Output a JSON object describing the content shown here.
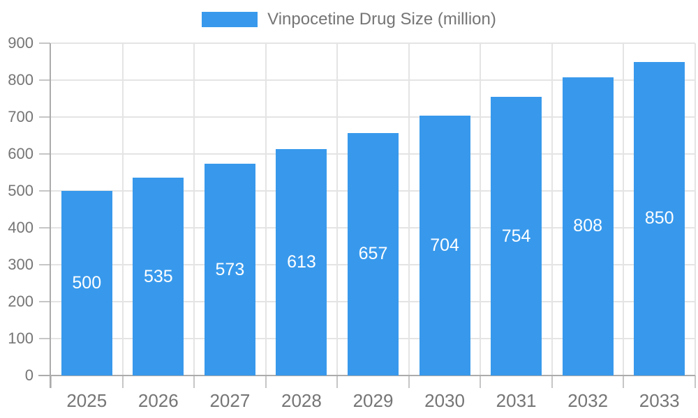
{
  "chart_data": {
    "type": "bar",
    "title": "",
    "legend": "Vinpocetine Drug Size (million)",
    "legend_position": "top",
    "categories": [
      "2025",
      "2026",
      "2027",
      "2028",
      "2029",
      "2030",
      "2031",
      "2032",
      "2033"
    ],
    "values": [
      500,
      535,
      573,
      613,
      657,
      704,
      754,
      808,
      850
    ],
    "xlabel": "",
    "ylabel": "",
    "ylim": [
      0,
      900
    ],
    "ytick_step": 100,
    "yticks": [
      0,
      100,
      200,
      300,
      400,
      500,
      600,
      700,
      800,
      900
    ],
    "grid": true,
    "colors": {
      "bar": "#3899ec",
      "bar_label": "#ffffff",
      "axis": "#ababab",
      "grid": "#e4e4e4",
      "tick": "#c6c6c6",
      "label": "#757575"
    }
  }
}
